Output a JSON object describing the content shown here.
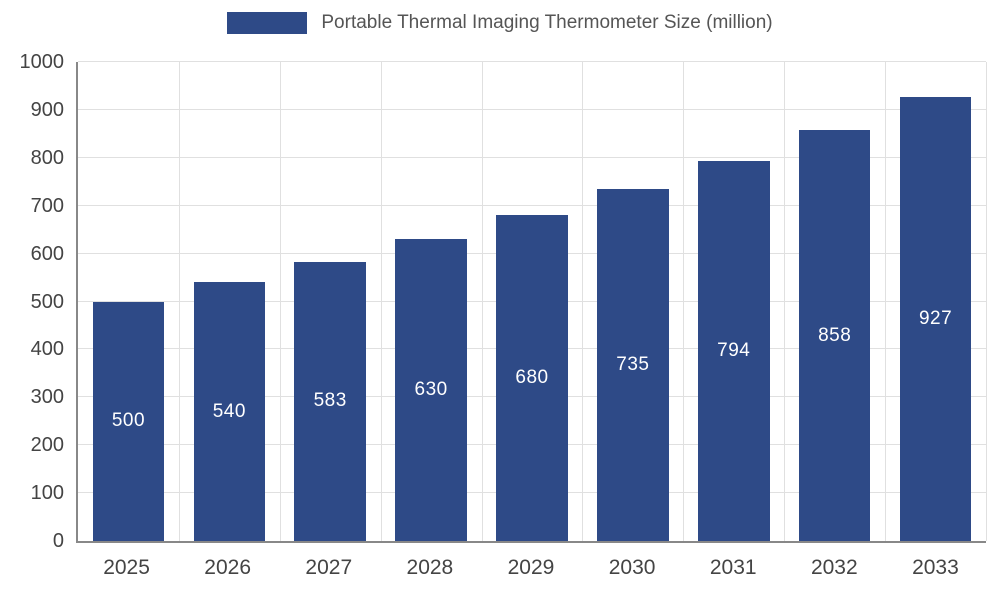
{
  "chart_data": {
    "type": "bar",
    "title": "Portable Thermal Imaging Thermometer Size (million)",
    "categories": [
      "2025",
      "2026",
      "2027",
      "2028",
      "2029",
      "2030",
      "2031",
      "2032",
      "2033"
    ],
    "values": [
      500,
      540,
      583,
      630,
      680,
      735,
      794,
      858,
      927
    ],
    "xlabel": "",
    "ylabel": "",
    "ylim": [
      0,
      1000
    ],
    "yticks": [
      0,
      100,
      200,
      300,
      400,
      500,
      600,
      700,
      800,
      900,
      1000
    ],
    "grid": true,
    "legend_position": "top",
    "bar_color": "#2E4A87",
    "value_label_color": "#ffffff"
  }
}
